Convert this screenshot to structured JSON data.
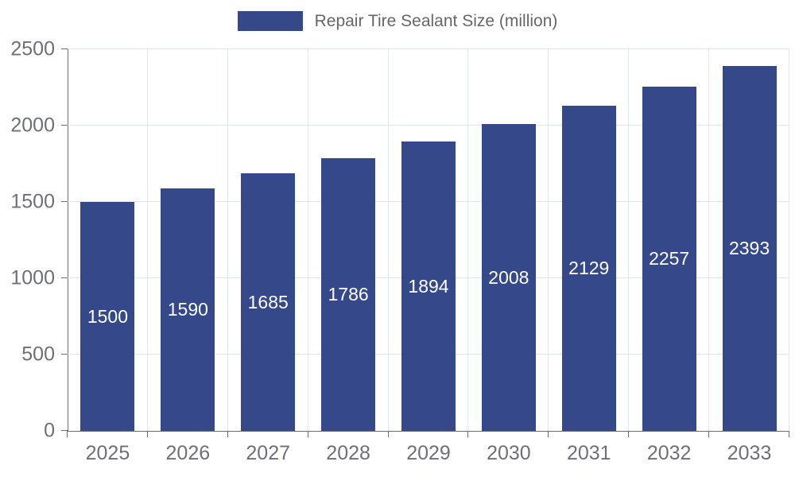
{
  "chart_data": {
    "type": "bar",
    "title": "Repair Tire Sealant Size (million)",
    "categories": [
      "2025",
      "2026",
      "2027",
      "2028",
      "2029",
      "2030",
      "2031",
      "2032",
      "2033"
    ],
    "values": [
      1500,
      1590,
      1685,
      1786,
      1894,
      2008,
      2129,
      2257,
      2393
    ],
    "series": [
      {
        "name": "Repair Tire Sealant Size (million)",
        "values": [
          1500,
          1590,
          1685,
          1786,
          1894,
          2008,
          2129,
          2257,
          2393
        ]
      }
    ],
    "xlabel": "",
    "ylabel": "",
    "ylim": [
      0,
      2500
    ],
    "yticks": [
      0,
      500,
      1000,
      1500,
      2000,
      2500
    ],
    "grid": "on",
    "legend_position": "top-center",
    "value_label_position": "inside-center"
  },
  "colors": {
    "bar": "#34488A",
    "gridline": "#E0E6F1",
    "axis_line": "#6E7079",
    "tick_label": "#6E7079",
    "legend_text": "#64666B",
    "value_label": "#FFFFFF",
    "background": "#FFFFFF"
  }
}
